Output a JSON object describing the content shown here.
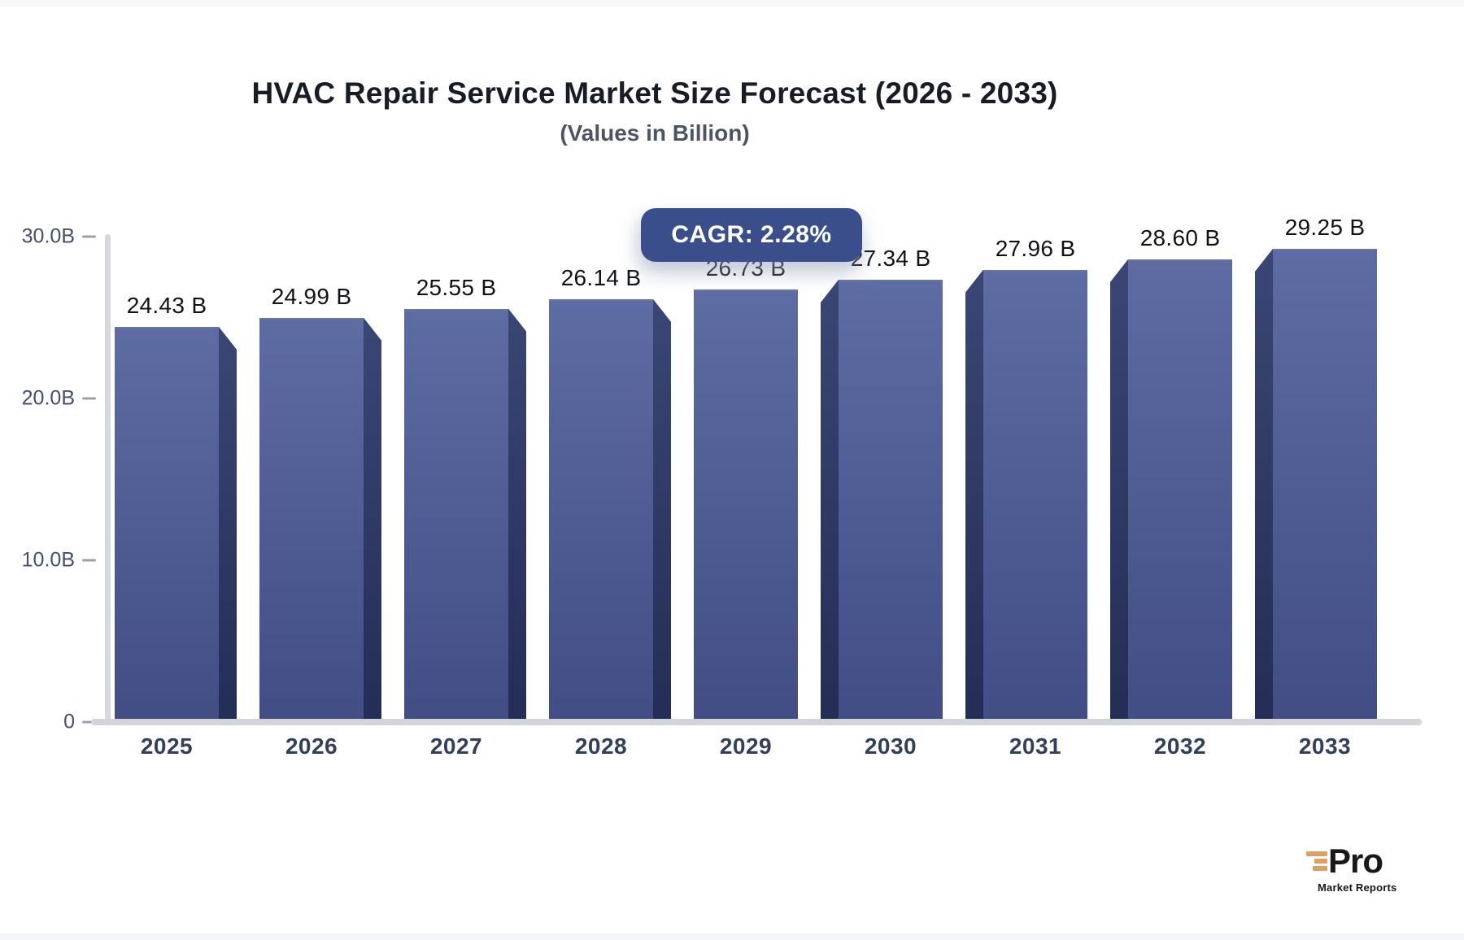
{
  "header": {
    "title": "HVAC Repair Service Market Size Forecast (2026 - 2033)",
    "subtitle": "(Values in Billion)"
  },
  "badge": {
    "label": "CAGR: 2.28%",
    "bg": "#3b4e8c",
    "text_color": "#ffffff"
  },
  "chart_data": {
    "type": "bar",
    "title": "HVAC Repair Service Market Size Forecast (2026 - 2033)",
    "subtitle": "(Values in Billion)",
    "categories": [
      "2025",
      "2026",
      "2027",
      "2028",
      "2029",
      "2030",
      "2031",
      "2032",
      "2033"
    ],
    "values": [
      24.43,
      24.99,
      25.55,
      26.14,
      26.73,
      27.34,
      27.96,
      28.6,
      29.25
    ],
    "value_labels": [
      "24.43 B",
      "24.99 B",
      "25.55 B",
      "26.14 B",
      "26.73 B",
      "27.34 B",
      "27.96 B",
      "28.60 B",
      "29.25 B"
    ],
    "xlabel": "",
    "ylabel": "",
    "ylim": [
      0,
      30
    ],
    "grid": false,
    "legend": "none",
    "yticks": [
      {
        "label": "30.0B",
        "value": 30
      },
      {
        "label": "20.0B",
        "value": 20
      },
      {
        "label": "10.0B",
        "value": 10
      },
      {
        "label": "0",
        "value": 0
      }
    ],
    "colors": {
      "bar_front_top": "#5e6ca4",
      "bar_front_bottom": "#414d84",
      "bar_side_top": "#3a4674",
      "bar_side_bottom": "#242d55",
      "axis": "#d2d4db",
      "tick_text": "#41506b",
      "category_text": "#32405a",
      "value_text": "#101218"
    }
  },
  "logo": {
    "name": "Pro",
    "tagline": "Market Reports",
    "accent": "#dd9f66"
  }
}
